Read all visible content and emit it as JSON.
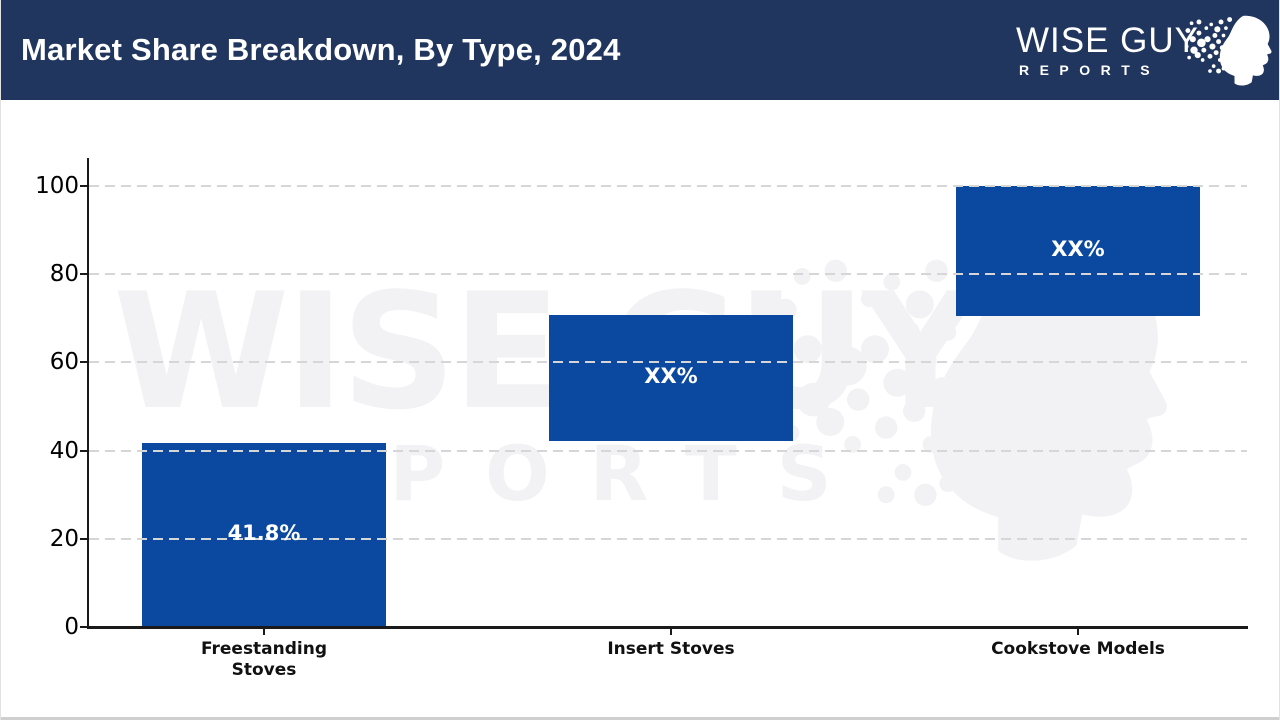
{
  "header": {
    "title": "Market Share Breakdown, By Type, 2024",
    "logo": {
      "brand": "WISE GUY",
      "brand_sub": "REPORTS"
    }
  },
  "watermark": {
    "brand": "WISE GUY",
    "brand_sub": "REPORTS"
  },
  "chart_data": {
    "type": "bar",
    "subtype": "cumulative-segment-bars",
    "title": "Market Share Breakdown, By Type, 2024",
    "categories": [
      "Freestanding\nStoves",
      "Insert Stoves",
      "Cookstove Models"
    ],
    "segments": [
      {
        "category": "Freestanding Stoves",
        "start": 0,
        "end": 41.8,
        "label": "41.8%"
      },
      {
        "category": "Insert Stoves",
        "start": 42.2,
        "end": 70.7,
        "label": "XX%"
      },
      {
        "category": "Cookstove Models",
        "start": 70.6,
        "end": 100,
        "label": "XX%"
      }
    ],
    "bar_color": "#0b49a0",
    "bar_label_color": "#ffffff",
    "yticks": [
      0,
      20,
      40,
      60,
      80,
      100
    ],
    "ylim": [
      0,
      106
    ],
    "grid": {
      "axis": "y",
      "style": "dashed",
      "color": "#d6d6d6",
      "on_top": true
    },
    "legend": "none",
    "xlabel": "",
    "ylabel": ""
  }
}
